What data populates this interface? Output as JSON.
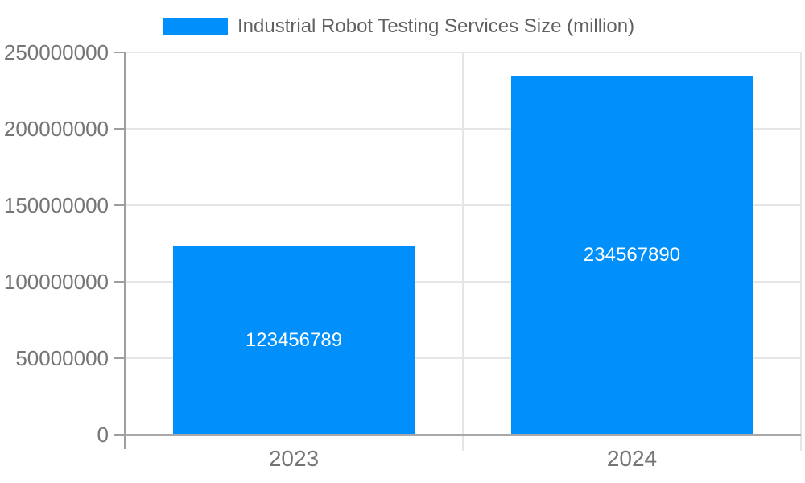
{
  "chart_data": {
    "type": "bar",
    "title": "Industrial Robot Testing Services Size (million)",
    "categories": [
      "2023",
      "2024"
    ],
    "series": [
      {
        "name": "Industrial Robot Testing Services Size (million)",
        "values": [
          123456789,
          234567890
        ]
      }
    ],
    "data_labels": [
      "123456789",
      "234567890"
    ],
    "y_ticks": [
      0,
      50000000,
      100000000,
      150000000,
      200000000,
      250000000
    ],
    "y_tick_labels": [
      "0",
      "50000000",
      "100000000",
      "150000000",
      "200000000",
      "250000000"
    ],
    "ylim": [
      0,
      250000000
    ],
    "xlabel": "",
    "ylabel": "",
    "grid": true,
    "legend_position": "top",
    "colors": {
      "bar": "#008FFB",
      "bar_label_text": "#ffffff",
      "axis_text": "#757575",
      "legend_text": "#616161",
      "axis_line": "#9e9e9e",
      "baseline": "#a8a8a8",
      "gridline": "#e6e6e6"
    }
  }
}
